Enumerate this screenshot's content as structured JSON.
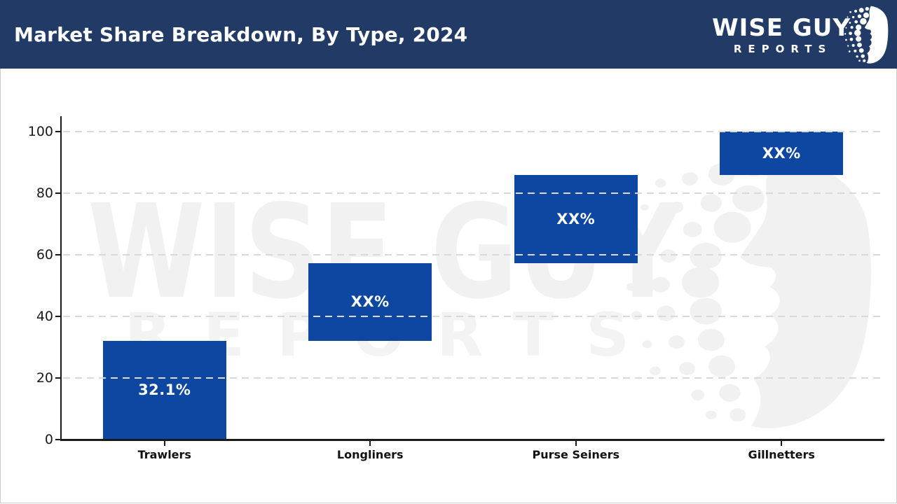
{
  "header": {
    "title": "Market Share Breakdown, By Type, 2024",
    "bg_color": "#213a66",
    "logo": {
      "line1": "WISE GUY",
      "line2": "REPORTS"
    }
  },
  "watermark": {
    "line1": "WISE GUY",
    "line2": "REPORTS",
    "color": "#f1f1f1"
  },
  "chart_data": {
    "type": "bar",
    "subtype": "waterfall",
    "title": "Market Share Breakdown, By Type, 2024",
    "categories": [
      "Trawlers",
      "Longliners",
      "Purse Seiners",
      "Gillnetters"
    ],
    "segments": [
      {
        "category": "Trawlers",
        "start": 0,
        "end": 32.1,
        "label": "32.1%"
      },
      {
        "category": "Longliners",
        "start": 32.1,
        "end": 57.3,
        "label": "XX%"
      },
      {
        "category": "Purse Seiners",
        "start": 57.3,
        "end": 86,
        "label": "XX%"
      },
      {
        "category": "Gillnetters",
        "start": 86,
        "end": 100,
        "label": "XX%"
      }
    ],
    "yticks": [
      0,
      20,
      40,
      60,
      80,
      100
    ],
    "ylim": [
      0,
      105
    ],
    "xlabel": "",
    "ylabel": "",
    "grid": "horizontal-dashed",
    "legend": "none",
    "bar_color": "#0d47a1",
    "label_color": "#ffffff",
    "axis_color": "#1a1a1a"
  }
}
